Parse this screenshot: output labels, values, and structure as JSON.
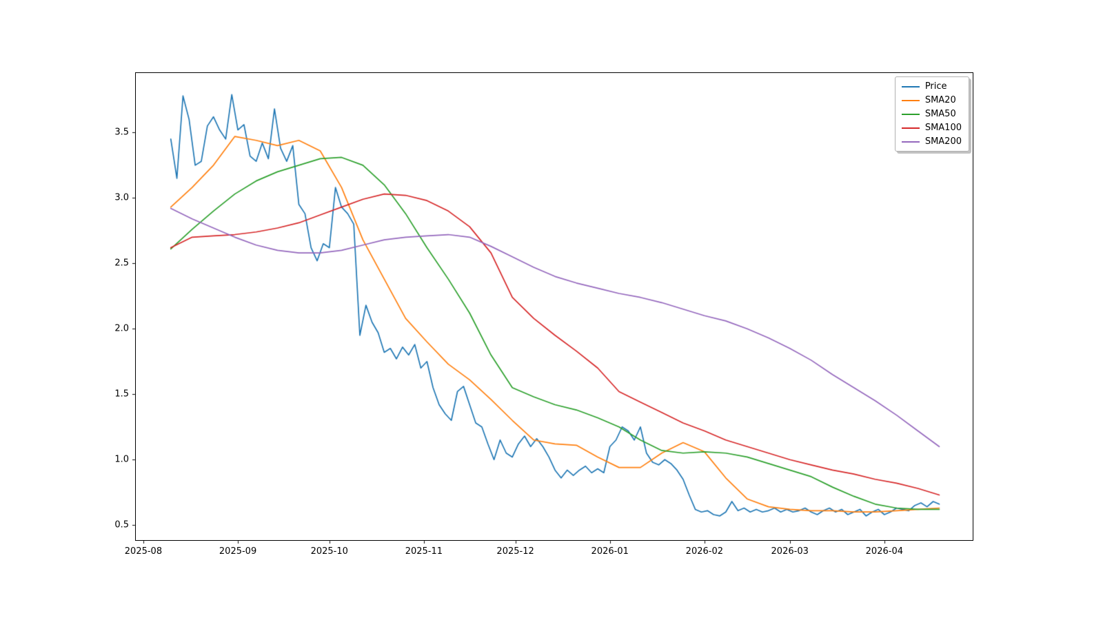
{
  "chart_data": {
    "type": "line",
    "title": "",
    "xlabel": "",
    "ylabel": "",
    "grid": false,
    "legend": {
      "position": "upper right",
      "labels": [
        "Price",
        "SMA20",
        "SMA50",
        "SMA100",
        "SMA200"
      ]
    },
    "x_axis": {
      "unit": "days_since_2025-08-01",
      "xlim_days": [
        -2.7,
        272.2
      ],
      "tick_days": [
        0,
        31,
        61,
        92,
        122,
        153,
        184,
        212,
        243
      ],
      "tick_labels": [
        "2025-08",
        "2025-09",
        "2025-10",
        "2025-11",
        "2025-12",
        "2026-01",
        "2026-02",
        "2026-03",
        "2026-04"
      ]
    },
    "y_axis": {
      "ylim": [
        0.38,
        3.96
      ],
      "ticks": [
        0.5,
        1.0,
        1.5,
        2.0,
        2.5,
        3.0,
        3.5
      ],
      "tick_labels": [
        "0.5",
        "1.0",
        "1.5",
        "2.0",
        "2.5",
        "3.0",
        "3.5"
      ]
    },
    "series": [
      {
        "name": "Price",
        "color": "#1f77b4",
        "x_start_day": 9,
        "x_step_days": 2,
        "values": [
          3.45,
          3.15,
          3.78,
          3.6,
          3.25,
          3.28,
          3.55,
          3.62,
          3.52,
          3.45,
          3.79,
          3.52,
          3.56,
          3.32,
          3.28,
          3.42,
          3.3,
          3.68,
          3.38,
          3.28,
          3.4,
          2.95,
          2.88,
          2.62,
          2.52,
          2.65,
          2.62,
          3.08,
          2.93,
          2.88,
          2.8,
          1.95,
          2.18,
          2.05,
          1.97,
          1.82,
          1.85,
          1.77,
          1.86,
          1.8,
          1.88,
          1.7,
          1.75,
          1.55,
          1.42,
          1.35,
          1.3,
          1.52,
          1.56,
          1.42,
          1.28,
          1.25,
          1.12,
          1.0,
          1.15,
          1.05,
          1.02,
          1.12,
          1.18,
          1.1,
          1.16,
          1.1,
          1.02,
          0.92,
          0.86,
          0.92,
          0.88,
          0.92,
          0.95,
          0.9,
          0.93,
          0.9,
          1.1,
          1.15,
          1.25,
          1.22,
          1.15,
          1.25,
          1.05,
          0.98,
          0.96,
          1.0,
          0.97,
          0.92,
          0.85,
          0.73,
          0.62,
          0.6,
          0.61,
          0.58,
          0.57,
          0.6,
          0.68,
          0.61,
          0.63,
          0.6,
          0.62,
          0.6,
          0.61,
          0.63,
          0.6,
          0.62,
          0.6,
          0.61,
          0.63,
          0.6,
          0.58,
          0.61,
          0.63,
          0.6,
          0.62,
          0.58,
          0.6,
          0.62,
          0.57,
          0.6,
          0.62,
          0.58,
          0.6,
          0.63,
          0.62,
          0.61,
          0.65,
          0.67,
          0.64,
          0.68,
          0.66
        ]
      },
      {
        "name": "SMA20",
        "color": "#ff7f0e",
        "x_start_day": 9,
        "x_step_days": 7,
        "values": [
          2.93,
          3.08,
          3.25,
          3.47,
          3.44,
          3.4,
          3.44,
          3.36,
          3.08,
          2.68,
          2.38,
          2.08,
          1.9,
          1.73,
          1.61,
          1.46,
          1.3,
          1.15,
          1.12,
          1.11,
          1.02,
          0.94,
          0.94,
          1.05,
          1.13,
          1.06,
          0.86,
          0.7,
          0.64,
          0.62,
          0.61,
          0.61,
          0.6,
          0.6,
          0.61,
          0.62,
          0.63
        ]
      },
      {
        "name": "SMA50",
        "color": "#2ca02c",
        "x_start_day": 9,
        "x_step_days": 7,
        "values": [
          2.61,
          2.76,
          2.9,
          3.03,
          3.13,
          3.2,
          3.25,
          3.3,
          3.31,
          3.25,
          3.1,
          2.88,
          2.62,
          2.38,
          2.12,
          1.8,
          1.55,
          1.48,
          1.42,
          1.38,
          1.32,
          1.25,
          1.15,
          1.07,
          1.05,
          1.06,
          1.05,
          1.02,
          0.97,
          0.92,
          0.87,
          0.79,
          0.72,
          0.66,
          0.63,
          0.62,
          0.62
        ]
      },
      {
        "name": "SMA100",
        "color": "#d62728",
        "x_start_day": 9,
        "x_step_days": 7,
        "values": [
          2.62,
          2.7,
          2.71,
          2.72,
          2.74,
          2.77,
          2.81,
          2.87,
          2.93,
          2.99,
          3.03,
          3.02,
          2.98,
          2.9,
          2.78,
          2.58,
          2.24,
          2.08,
          1.95,
          1.83,
          1.7,
          1.52,
          1.44,
          1.36,
          1.28,
          1.22,
          1.15,
          1.1,
          1.05,
          1.0,
          0.96,
          0.92,
          0.89,
          0.85,
          0.82,
          0.78,
          0.73
        ]
      },
      {
        "name": "SMA200",
        "color": "#9467bd",
        "x_start_day": 9,
        "x_step_days": 7,
        "values": [
          2.92,
          2.84,
          2.77,
          2.7,
          2.64,
          2.6,
          2.58,
          2.58,
          2.6,
          2.64,
          2.68,
          2.7,
          2.71,
          2.72,
          2.7,
          2.63,
          2.55,
          2.47,
          2.4,
          2.35,
          2.31,
          2.27,
          2.24,
          2.2,
          2.15,
          2.1,
          2.06,
          2.0,
          1.93,
          1.85,
          1.76,
          1.65,
          1.55,
          1.45,
          1.34,
          1.22,
          1.1
        ]
      }
    ]
  }
}
